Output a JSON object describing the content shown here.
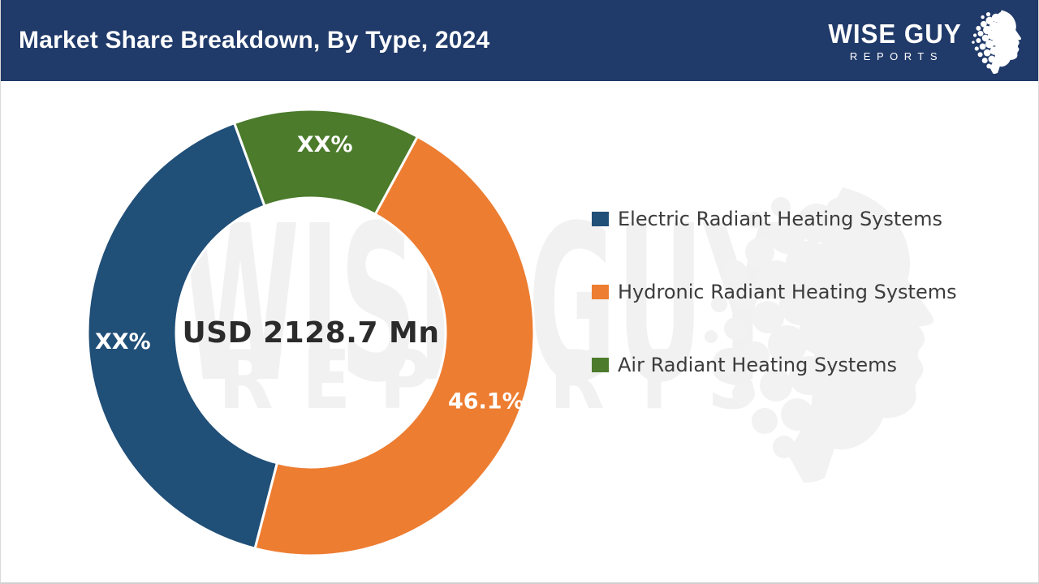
{
  "header": {
    "title": "Market Share Breakdown, By Type, 2024",
    "background": "#203A69",
    "logo": {
      "line1": "WISE GUY",
      "line2": "REPORTS"
    }
  },
  "watermark": {
    "line1": "WISE GUY",
    "line2": "REPORTS"
  },
  "center_label": "USD 2128.7 Mn",
  "legend": {
    "items": [
      {
        "label": "Electric Radiant Heating Systems",
        "color": "#204F78"
      },
      {
        "label": "Hydronic Radiant Heating Systems",
        "color": "#ED7D31"
      },
      {
        "label": "Air Radiant Heating Systems",
        "color": "#4B7B2B"
      }
    ]
  },
  "chart_data": {
    "type": "pie",
    "donut": true,
    "title": "Market Share Breakdown, By Type, 2024",
    "center_text": "USD 2128.7 Mn",
    "legend_position": "right",
    "start_angle_deg": 194.5,
    "segments": [
      {
        "name": "Electric Radiant Heating Systems",
        "value_pct": 40.4,
        "display_label": "XX%",
        "color": "#204F78"
      },
      {
        "name": "Air Radiant Heating Systems",
        "value_pct": 13.5,
        "display_label": "XX%",
        "color": "#4B7B2B"
      },
      {
        "name": "Hydronic Radiant Heating Systems",
        "value_pct": 46.1,
        "display_label": "46.1%",
        "color": "#ED7D31"
      }
    ]
  }
}
